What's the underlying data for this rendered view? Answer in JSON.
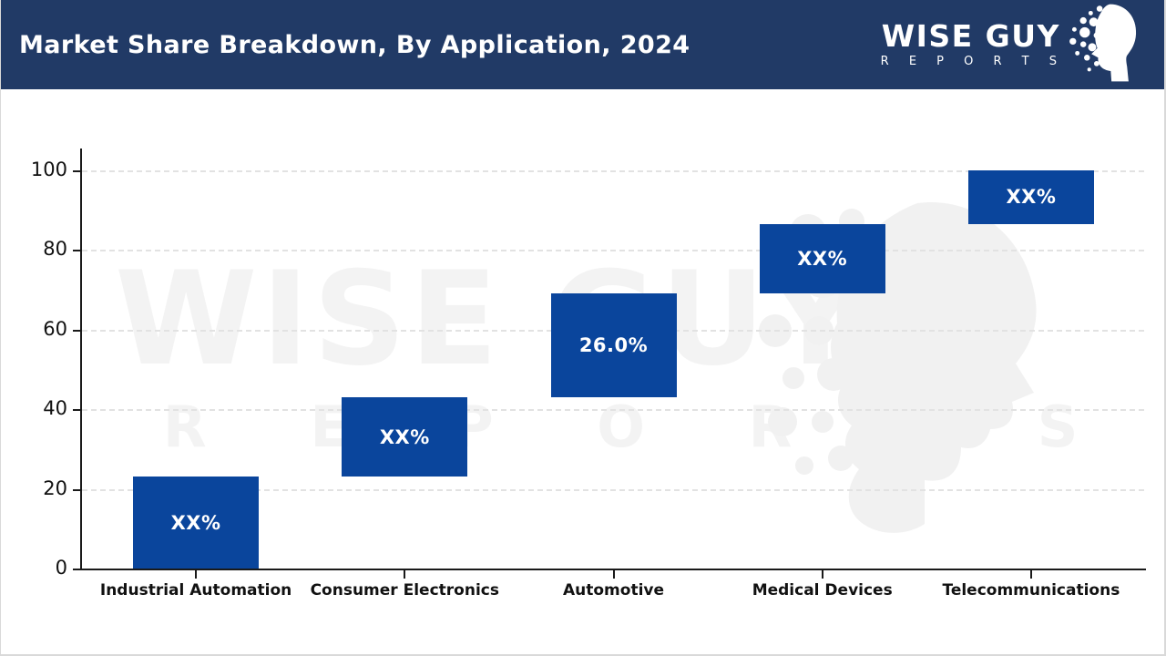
{
  "header": {
    "title": "Market Share Breakdown, By Application, 2024",
    "logo": {
      "wordmark": "WISE GUY",
      "subtext": "R E P O R T S"
    }
  },
  "watermark": {
    "line1": "WISE GUY",
    "line2": "R E P O R T S"
  },
  "colors": {
    "header_bg": "#213a66",
    "bar": "#0a459c",
    "bar_label": "#ffffff",
    "axis": "#1a1a1a",
    "gridline": "#e2e2e2",
    "watermark": "#f3f3f3",
    "border": "#d9d9d9"
  },
  "chart_data": {
    "type": "bar",
    "subtype": "waterfall",
    "title": "Market Share Breakdown, By Application, 2024",
    "categories": [
      "Industrial Automation",
      "Consumer Electronics",
      "Automotive",
      "Medical Devices",
      "Telecommunications"
    ],
    "bars": [
      {
        "category": "Industrial Automation",
        "start": 0,
        "end": 23,
        "label": "XX%"
      },
      {
        "category": "Consumer Electronics",
        "start": 23,
        "end": 43,
        "label": "XX%"
      },
      {
        "category": "Automotive",
        "start": 43,
        "end": 69,
        "label": "26.0%"
      },
      {
        "category": "Medical Devices",
        "start": 69,
        "end": 86.5,
        "label": "XX%"
      },
      {
        "category": "Telecommunications",
        "start": 86.5,
        "end": 100,
        "label": "XX%"
      }
    ],
    "ylim": [
      0,
      100
    ],
    "yticks": [
      0,
      20,
      40,
      60,
      80,
      100
    ],
    "xlabel": "",
    "ylabel": "",
    "grid": "horizontal-dashed",
    "legend": "none"
  }
}
